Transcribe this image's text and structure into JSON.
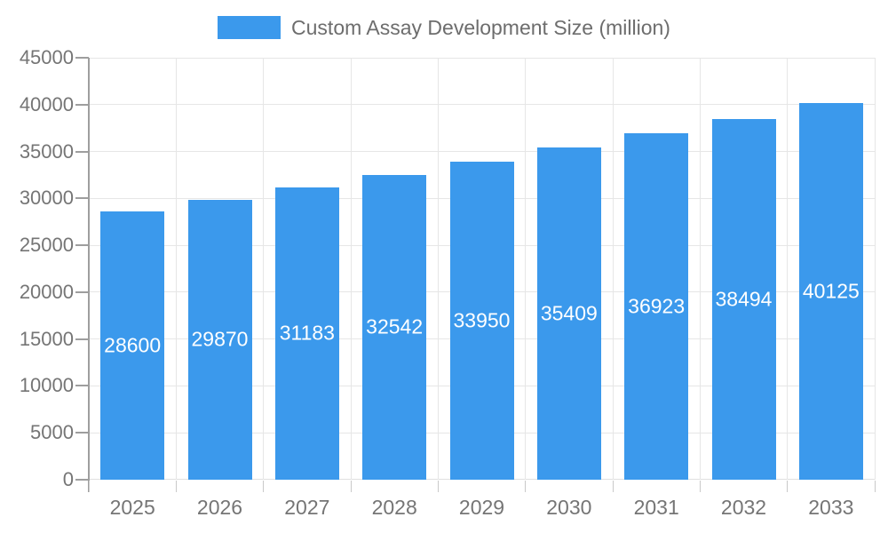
{
  "chart_data": {
    "type": "bar",
    "title": "Custom Assay Development Size (million)",
    "legend_position": "top",
    "categories": [
      "2025",
      "2026",
      "2027",
      "2028",
      "2029",
      "2030",
      "2031",
      "2032",
      "2033"
    ],
    "series": [
      {
        "name": "Custom Assay Development Size (million)",
        "values": [
          28600,
          29870,
          31183,
          32542,
          33950,
          35409,
          36923,
          38494,
          40125
        ]
      }
    ],
    "value_labels_shown": true,
    "xlabel": "",
    "ylabel": "",
    "ylim": [
      0,
      45000
    ],
    "yticks": [
      0,
      5000,
      10000,
      15000,
      20000,
      25000,
      30000,
      35000,
      40000,
      45000
    ],
    "grid": true,
    "colors": {
      "bar": "#3b99ec",
      "value_label": "#ffffff",
      "axis_text": "#757575",
      "legend_text": "#6d6d6d",
      "gridline": "#e6e6e6",
      "axis_line": "#9e9e9e"
    }
  }
}
